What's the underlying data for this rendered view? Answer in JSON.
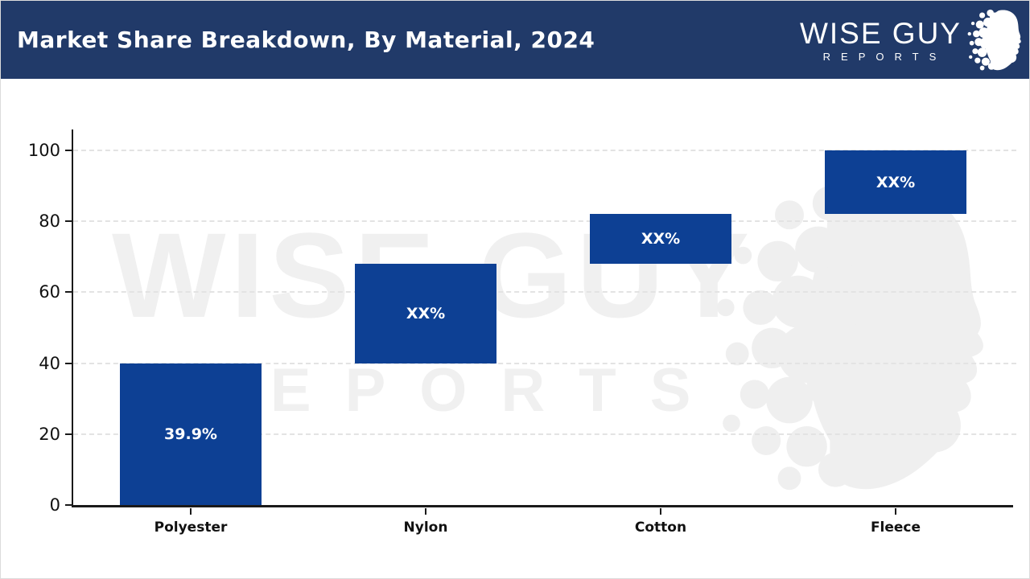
{
  "header": {
    "title": "Market Share Breakdown, By Material, 2024",
    "logo": {
      "line1": "WISE GUY",
      "line2": "REPORTS"
    }
  },
  "watermark": {
    "line1": "WISE GUY",
    "line2": "REPORTS"
  },
  "colors": {
    "header_bg": "#213A69",
    "bar_color": "#0D4094",
    "axis_color": "#1a1a1a",
    "gridline_color": "#e3e3e3",
    "watermark_color": "#f0f0f0"
  },
  "chart_data": {
    "type": "bar",
    "subtype": "waterfall-stacked-market-share",
    "title": "Market Share Breakdown, By Material, 2024",
    "categories": [
      "Polyester",
      "Nylon",
      "Cotton",
      "Fleece"
    ],
    "segments": [
      {
        "category": "Polyester",
        "start": 0,
        "end": 39.9,
        "value": 39.9,
        "label": "39.9%"
      },
      {
        "category": "Nylon",
        "start": 39.9,
        "end": 68,
        "value": 28.1,
        "label": "XX%"
      },
      {
        "category": "Cotton",
        "start": 68,
        "end": 82,
        "value": 14,
        "label": "XX%"
      },
      {
        "category": "Fleece",
        "start": 82,
        "end": 100,
        "value": 18,
        "label": "XX%"
      }
    ],
    "yticks": [
      0,
      20,
      40,
      60,
      80,
      100
    ],
    "ylim": [
      0,
      100
    ],
    "xlabel": "",
    "ylabel": "",
    "grid": "horizontal-dashed",
    "legend": "none",
    "bar_color": "#0D4094",
    "value_labels_inside_bars": true
  }
}
